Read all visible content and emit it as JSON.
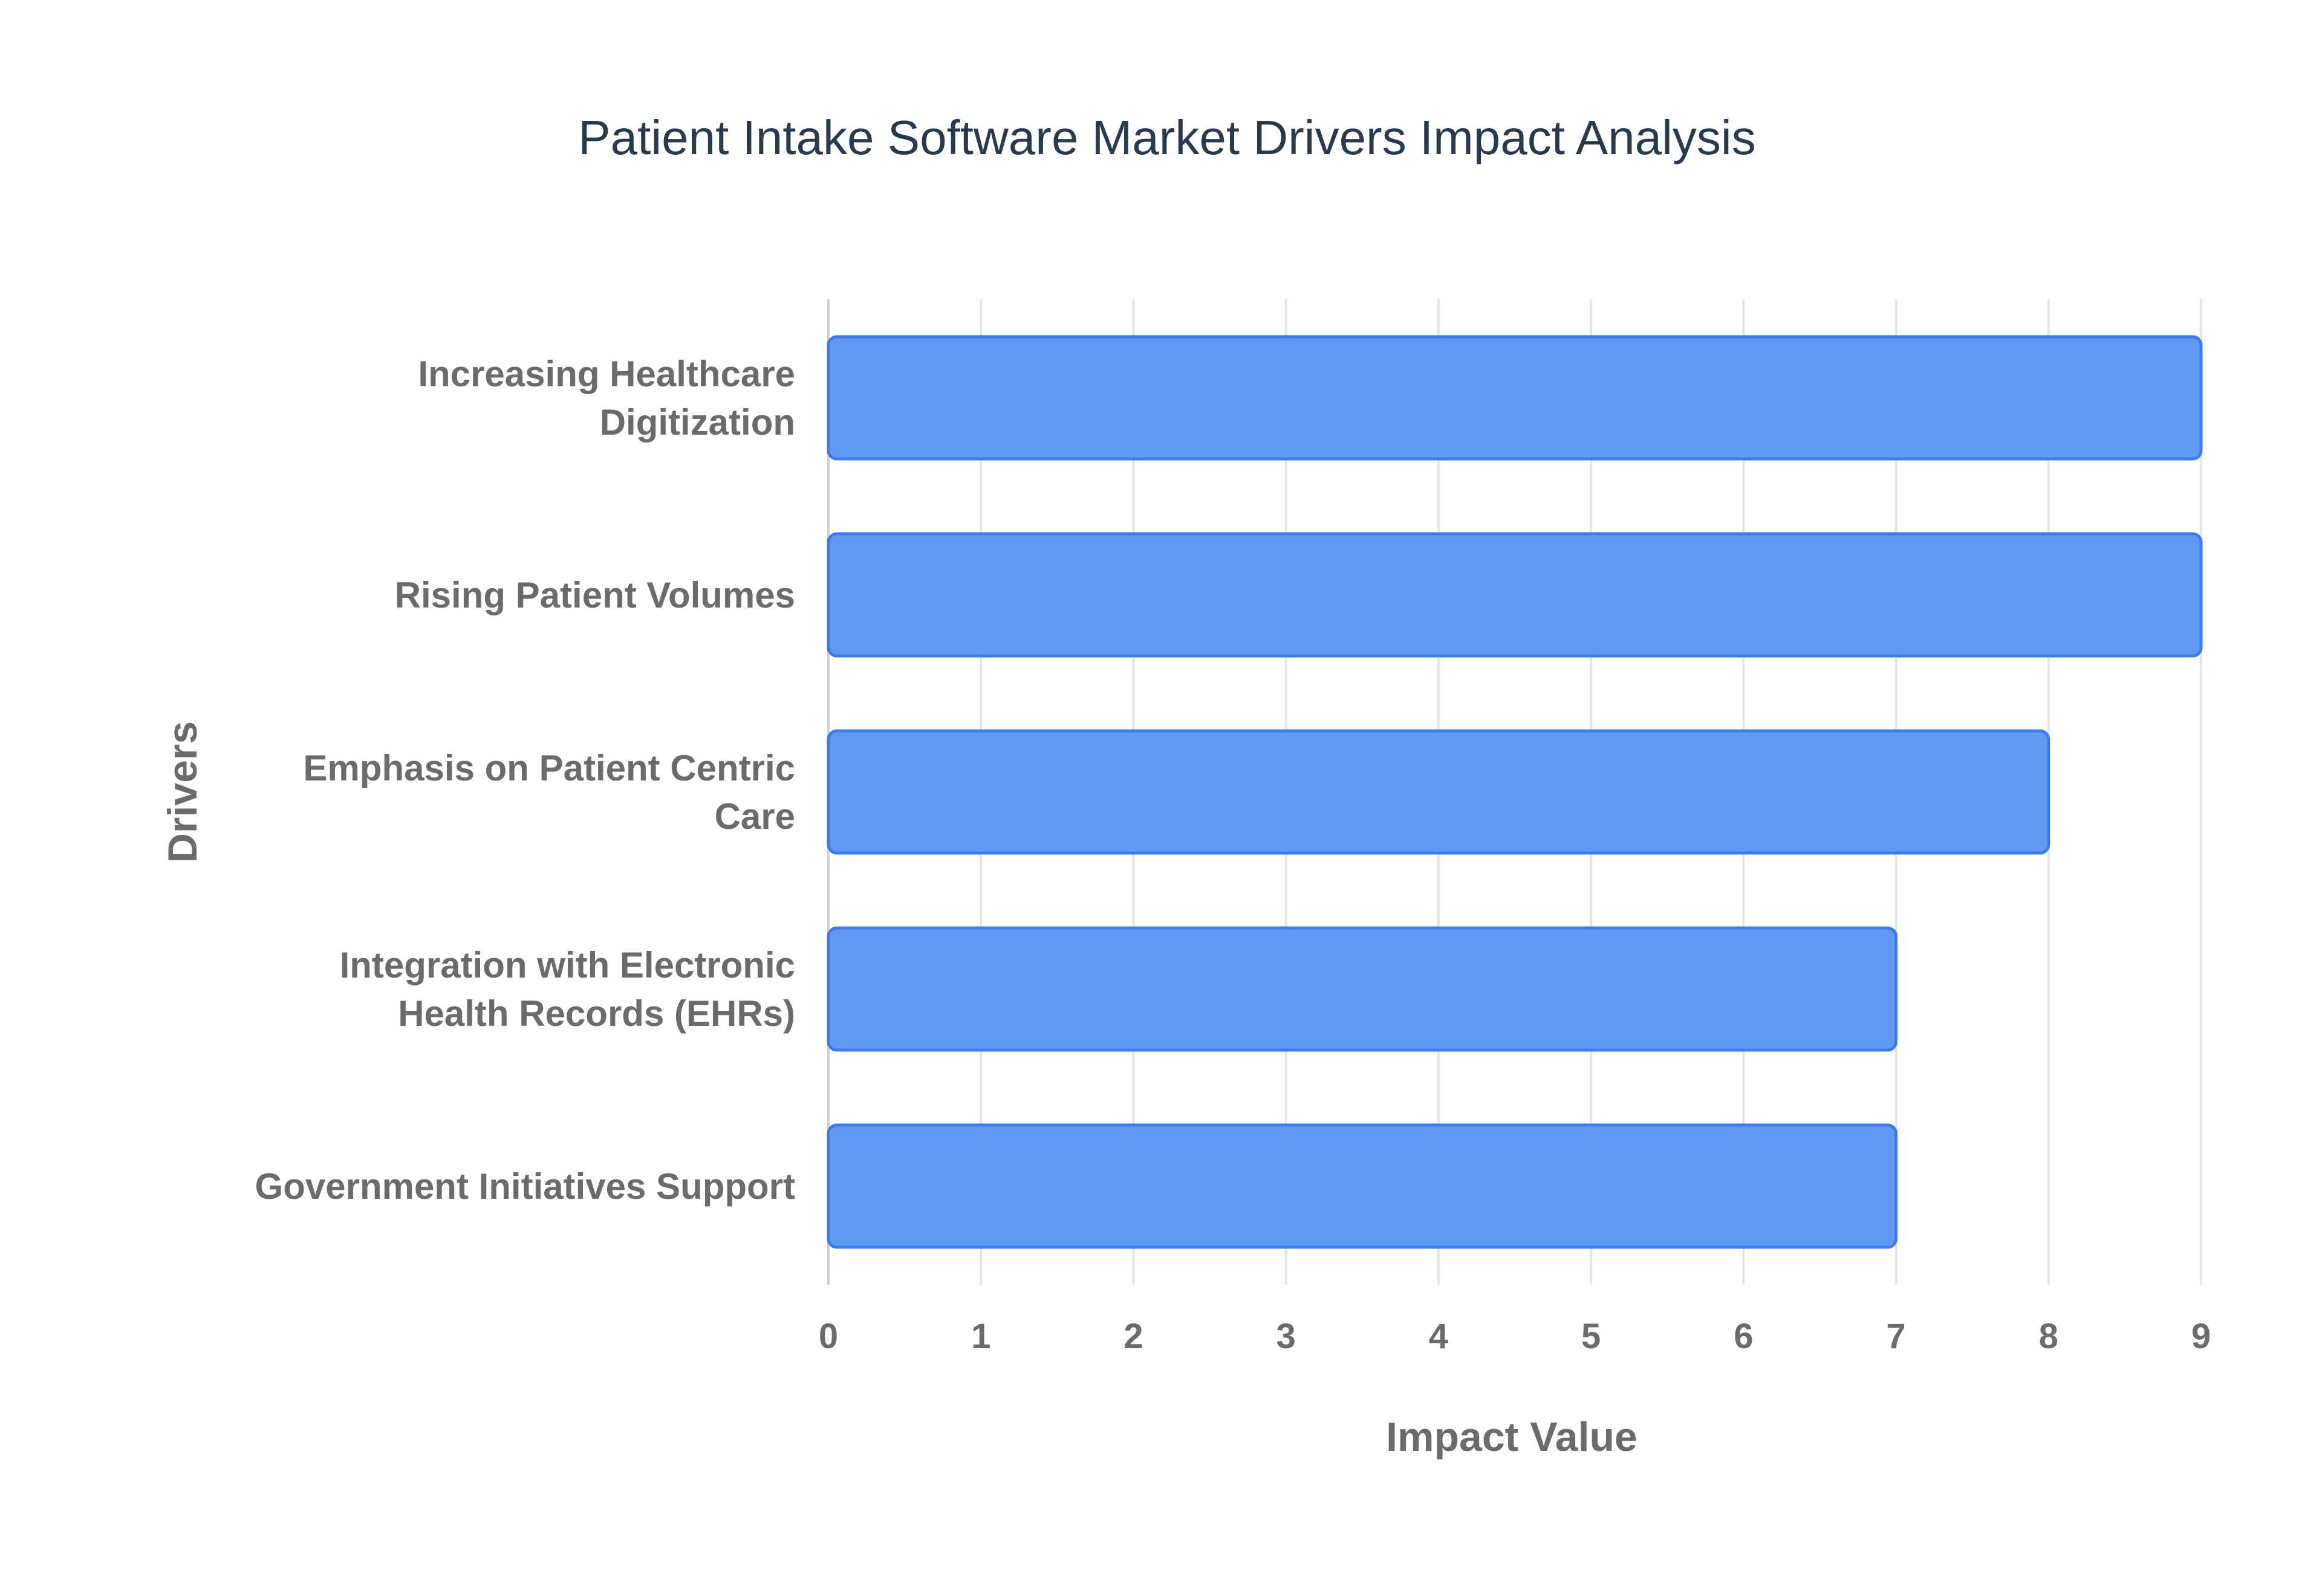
{
  "chart_data": {
    "type": "bar",
    "orientation": "horizontal",
    "title": "Patient Intake Software Market Drivers Impact Analysis",
    "xlabel": "Impact Value",
    "ylabel": "Drivers",
    "categories": [
      [
        "Increasing Healthcare",
        "Digitization"
      ],
      [
        "Rising Patient Volumes"
      ],
      [
        "Emphasis on Patient Centric",
        "Care"
      ],
      [
        "Integration with Electronic",
        "Health Records (EHRs)"
      ],
      [
        "Government Initiatives Support"
      ]
    ],
    "values": [
      9,
      9,
      8,
      7,
      7
    ],
    "xlim": [
      0,
      9
    ],
    "xticks": [
      "0",
      "1",
      "2",
      "3",
      "4",
      "5",
      "6",
      "7",
      "8",
      "9"
    ],
    "grid": true,
    "legend": "none",
    "colors": {
      "bar_fill": "#6299f5",
      "bar_stroke": "#3f7be8"
    }
  }
}
